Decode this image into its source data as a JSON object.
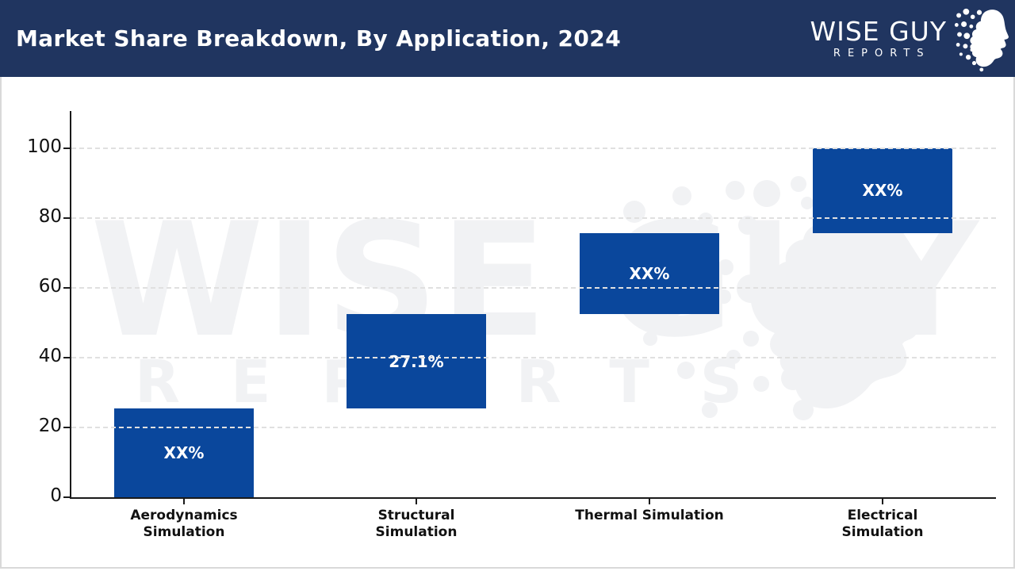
{
  "header": {
    "title": "Market Share Breakdown, By Application, 2024",
    "bg_color": "#203560",
    "logo": {
      "wordmark": "WISE GUY",
      "subtext": "REPORTS"
    }
  },
  "watermark": {
    "wordmark": "WISE GUY",
    "subtext": "REPORTS"
  },
  "chart_data": {
    "type": "bar",
    "subtype": "waterfall-floating-bars",
    "title": "Market Share Breakdown, By Application, 2024",
    "categories": [
      "Aerodynamics\nSimulation",
      "Structural\nSimulation",
      "Thermal Simulation",
      "Electrical\nSimulation"
    ],
    "bars": [
      {
        "category": "Aerodynamics Simulation",
        "start": 0,
        "end": 25.4,
        "label": "XX%"
      },
      {
        "category": "Structural Simulation",
        "start": 25.4,
        "end": 52.5,
        "label": "27.1%"
      },
      {
        "category": "Thermal Simulation",
        "start": 52.5,
        "end": 75.7,
        "label": "XX%"
      },
      {
        "category": "Electrical Simulation",
        "start": 75.7,
        "end": 100,
        "label": "XX%"
      }
    ],
    "bar_color": "#0a479c",
    "bar_label_color": "#ffffff",
    "yticks": [
      0,
      20,
      40,
      60,
      80,
      100
    ],
    "ylim": [
      0,
      100
    ],
    "xlabel": "",
    "ylabel": "",
    "grid": "horizontal-dashed",
    "gridline_color": "#e0e0e0",
    "axis_color": "#1a1a1a",
    "legend": "none"
  }
}
